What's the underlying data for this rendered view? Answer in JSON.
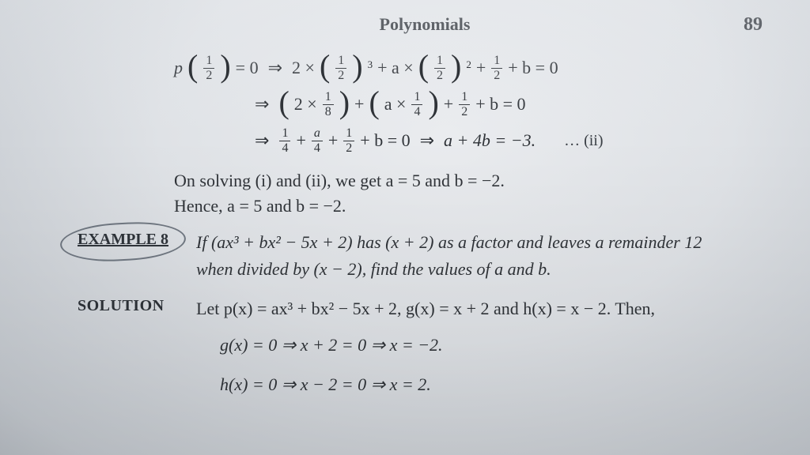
{
  "colors": {
    "text": "#2f3338",
    "bg_center": "#eaecef",
    "bg_edge": "#a7adb4",
    "rule": "#2f3338",
    "pen_ellipse": "#5b636d"
  },
  "typography": {
    "body_family": "Georgia, 'Times New Roman', serif",
    "body_size_pt": 16,
    "title_size_pt": 17,
    "title_weight": 700
  },
  "header": {
    "title": "Polynomials",
    "page_number": "89"
  },
  "derivation": {
    "line1": {
      "p_of": {
        "num": "1",
        "den": "2"
      },
      "eq_zero": "= 0",
      "imp": "⇒",
      "coef1": "2 ×",
      "base1": {
        "num": "1",
        "den": "2"
      },
      "exp1": "3",
      "plus1": "+ a ×",
      "base2": {
        "num": "1",
        "den": "2"
      },
      "exp2": "2",
      "plus2": "+",
      "frac3": {
        "num": "1",
        "den": "2"
      },
      "tail": "+ b = 0"
    },
    "line2": {
      "imp": "⇒",
      "g1a": "2 ×",
      "g1f": {
        "num": "1",
        "den": "8"
      },
      "plus": "+",
      "g2a": "a ×",
      "g2f": {
        "num": "1",
        "den": "4"
      },
      "plus2": "+",
      "g3f": {
        "num": "1",
        "den": "2"
      },
      "tail": "+ b = 0"
    },
    "line3": {
      "imp": "⇒",
      "f1": {
        "num": "1",
        "den": "4"
      },
      "p1": "+",
      "f2": {
        "num": "a",
        "den": "4"
      },
      "p2": "+",
      "f3": {
        "num": "1",
        "den": "2"
      },
      "mid": "+ b = 0",
      "imp2": "⇒",
      "result": "a + 4b = −3.",
      "tag": "… (ii)"
    }
  },
  "post_lines": {
    "solving": "On solving (i) and (ii), we get a = 5 and b = −2.",
    "hence": "Hence, a = 5 and b = −2."
  },
  "example": {
    "label": "EXAMPLE 8",
    "text_l1": "If (ax³ + bx² − 5x + 2) has (x + 2) as a factor and leaves a remainder 12",
    "text_l2": "when divided by (x − 2), find the values of a and b."
  },
  "solution": {
    "label": "SOLUTION",
    "let_line": "Let p(x) = ax³ + bx² − 5x + 2,  g(x) = x + 2 and h(x) = x − 2. Then,",
    "g_line": "g(x) = 0  ⇒  x + 2 = 0  ⇒  x = −2.",
    "h_line": "h(x) = 0  ⇒  x − 2 = 0  ⇒  x = 2."
  }
}
